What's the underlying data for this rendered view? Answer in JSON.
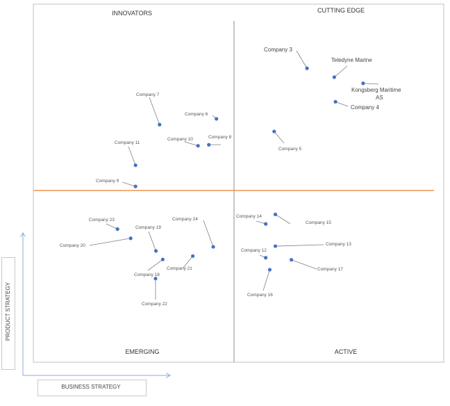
{
  "quadrants": {
    "top_left": "INNOVATORS",
    "top_right": "CUTTING EDGE",
    "bottom_left": "EMERGING",
    "bottom_right": "ACTIVE"
  },
  "axes": {
    "y_label": "PRODUCT STRATEGY",
    "x_label": "BUSINESS STRATEGY"
  },
  "colors": {
    "point": "#4472c4",
    "divider_h": "#ed7d31",
    "divider_v": "#8c8c8c",
    "leader": "#7f7f7f",
    "arrow": "#8eaadb"
  },
  "chart_data": {
    "type": "scatter",
    "title": "",
    "xlabel": "BUSINESS STRATEGY",
    "ylabel": "PRODUCT STRATEGY",
    "points": [
      {
        "name": "Company 3",
        "x": 0.683,
        "y": 0.861
      },
      {
        "name": "Teledyne Marine",
        "x": 0.751,
        "y": 0.835
      },
      {
        "name": "Kongsberg Maritime AS",
        "x": 0.823,
        "y": 0.817
      },
      {
        "name": "Company 4",
        "x": 0.754,
        "y": 0.763
      },
      {
        "name": "Company 5",
        "x": 0.601,
        "y": 0.676
      },
      {
        "name": "Company 6",
        "x": 0.457,
        "y": 0.713
      },
      {
        "name": "Company 7",
        "x": 0.315,
        "y": 0.696
      },
      {
        "name": "Company 8",
        "x": 0.438,
        "y": 0.637
      },
      {
        "name": "Company 10",
        "x": 0.411,
        "y": 0.634
      },
      {
        "name": "Company 11",
        "x": 0.255,
        "y": 0.577
      },
      {
        "name": "Company 9",
        "x": 0.255,
        "y": 0.515
      },
      {
        "name": "Company 14",
        "x": 0.58,
        "y": 0.405
      },
      {
        "name": "Company 15",
        "x": 0.604,
        "y": 0.433
      },
      {
        "name": "Company 13",
        "x": 0.604,
        "y": 0.34
      },
      {
        "name": "Company 12",
        "x": 0.58,
        "y": 0.306
      },
      {
        "name": "Company 17",
        "x": 0.644,
        "y": 0.3
      },
      {
        "name": "Company 16",
        "x": 0.59,
        "y": 0.271
      },
      {
        "name": "Company 23",
        "x": 0.21,
        "y": 0.39
      },
      {
        "name": "Company 19",
        "x": 0.306,
        "y": 0.326
      },
      {
        "name": "Company 20",
        "x": 0.243,
        "y": 0.363
      },
      {
        "name": "Company 24",
        "x": 0.449,
        "y": 0.338
      },
      {
        "name": "Company 21",
        "x": 0.398,
        "y": 0.311
      },
      {
        "name": "Company 18",
        "x": 0.323,
        "y": 0.301
      },
      {
        "name": "Company 22",
        "x": 0.305,
        "y": 0.245
      }
    ]
  }
}
